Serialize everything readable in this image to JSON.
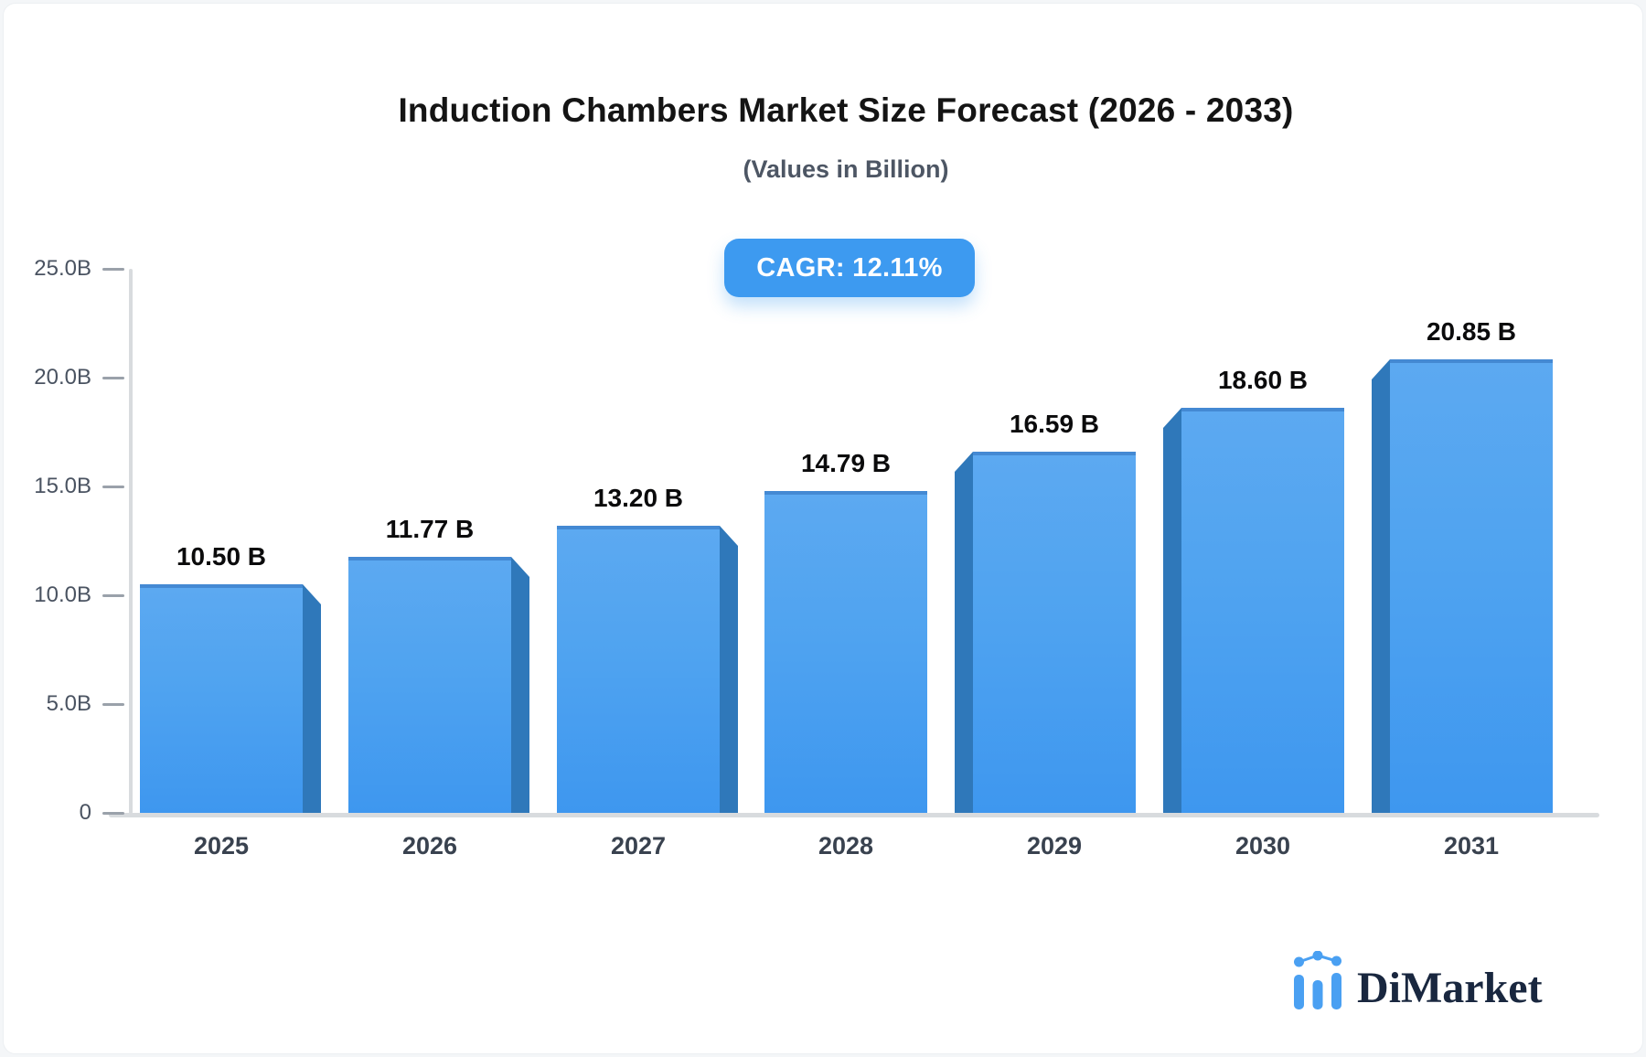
{
  "chart": {
    "title": "Induction Chambers Market Size Forecast (2026 - 2033)",
    "subtitle": "(Values in Billion)",
    "cagr_label": "CAGR: 12.11%"
  },
  "chart_data": {
    "type": "bar",
    "title": "Induction Chambers Market Size Forecast (2026 - 2033)",
    "subtitle": "(Values in Billion)",
    "annotation": "CAGR: 12.11%",
    "categories": [
      "2025",
      "2026",
      "2027",
      "2028",
      "2029",
      "2030",
      "2031"
    ],
    "values": [
      10.5,
      11.77,
      13.2,
      14.79,
      16.59,
      18.6,
      20.85
    ],
    "value_labels": [
      "10.50 B",
      "11.77 B",
      "13.20 B",
      "14.79 B",
      "16.59 B",
      "18.60 B",
      "20.85 B"
    ],
    "y_ticks": [
      {
        "value": 25,
        "label": "25.0B"
      },
      {
        "value": 20,
        "label": "20.0B"
      },
      {
        "value": 15,
        "label": "15.0B"
      },
      {
        "value": 10,
        "label": "10.0B"
      },
      {
        "value": 5,
        "label": "5.0B"
      },
      {
        "value": 0,
        "label": "0"
      }
    ],
    "ylim": [
      0,
      25
    ],
    "xlabel": "",
    "ylabel": "",
    "grid": false,
    "legend": false,
    "bar_color_top": "#5CA9F1",
    "bar_color_bottom": "#3E97EF",
    "bar_side_color": "#2F78BA",
    "accent_color": "#3D9AF0"
  },
  "brand": {
    "name": "DiMarket"
  }
}
